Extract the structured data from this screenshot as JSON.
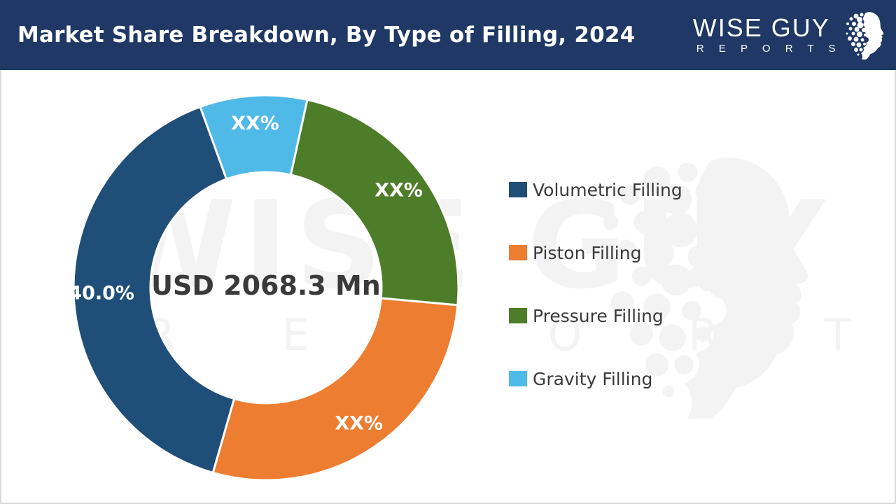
{
  "header": {
    "title": "Market Share Breakdown, By Type of Filling, 2024",
    "logo": {
      "line1": "WISE GUY",
      "line2": "R E P O R T S"
    }
  },
  "watermark": {
    "line1": "WISE GUY",
    "line2": "R E P O R T S"
  },
  "chart_data": {
    "type": "pie",
    "variant": "donut",
    "title": "Market Share Breakdown, By Type of Filling, 2024",
    "center_label": "USD 2068.3 Mn",
    "legend_position": "right",
    "direction": "clockwise",
    "start_angle_from_top_deg": -20,
    "arc_draw_order": [
      3,
      2,
      1,
      0
    ],
    "segments": [
      {
        "label": "Volumetric Filling",
        "color": "#1f4e79",
        "value_pct": 40.0,
        "data_label": "40.0%"
      },
      {
        "label": "Piston Filling",
        "color": "#ed7d31",
        "value_pct": 28.0,
        "data_label": "XX%"
      },
      {
        "label": "Pressure Filling",
        "color": "#4e7d2a",
        "value_pct": 23.0,
        "data_label": "XX%"
      },
      {
        "label": "Gravity Filling",
        "color": "#4fb9e8",
        "value_pct": 9.0,
        "data_label": "XX%"
      }
    ]
  },
  "colors": {
    "header_bg": "#1f3865",
    "page_bg": "#ffffff",
    "border": "#d9d9d9",
    "text_dark": "#3a3a3a",
    "slice_label": "#ffffff",
    "watermark": "#f3f3f4",
    "logo_fg": "#ffffff"
  }
}
